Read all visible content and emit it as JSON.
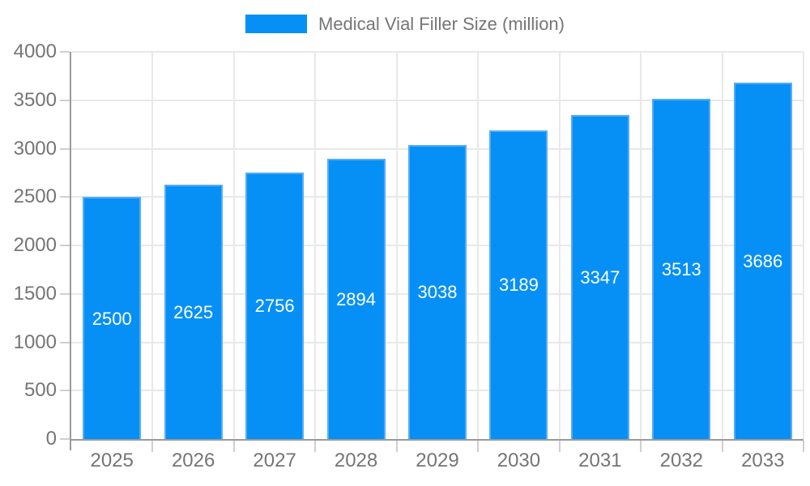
{
  "chart_data": {
    "type": "bar",
    "title": "Medical Vial Filler Size (million)",
    "legend_position": "top-center",
    "categories": [
      "2025",
      "2026",
      "2027",
      "2028",
      "2029",
      "2030",
      "2031",
      "2032",
      "2033"
    ],
    "values": [
      2500,
      2625,
      2756,
      2894,
      3038,
      3189,
      3347,
      3513,
      3686
    ],
    "xlabel": "",
    "ylabel": "",
    "ylim": [
      0,
      4000
    ],
    "yticks": [
      0,
      500,
      1000,
      1500,
      2000,
      2500,
      3000,
      3500,
      4000
    ],
    "grid": true,
    "bar_value_labels_shown": true,
    "colors": {
      "bar_fill": "#0690f6",
      "bar_border": "#55acf7",
      "grid": "#e8e8e8",
      "axis": "#9a9a9a",
      "tick": "#cfcfcf",
      "axis_text": "#757575",
      "legend_text": "#757575",
      "bar_label_text": "#ffffff",
      "background": "#ffffff"
    }
  }
}
